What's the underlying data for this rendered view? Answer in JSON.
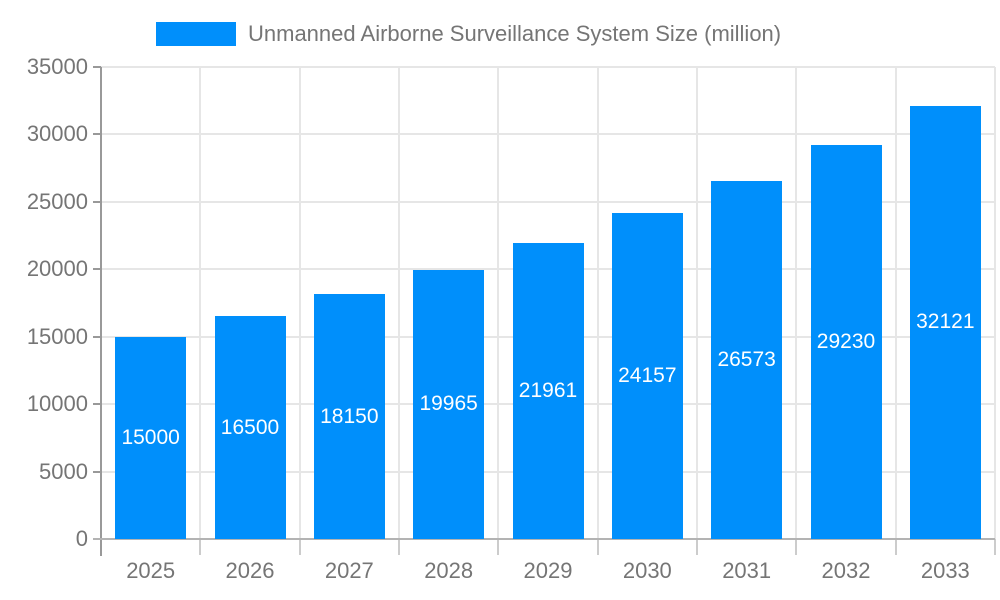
{
  "chart_data": {
    "type": "bar",
    "title": "Unmanned Airborne Surveillance System Size (million)",
    "categories": [
      "2025",
      "2026",
      "2027",
      "2028",
      "2029",
      "2030",
      "2031",
      "2032",
      "2033"
    ],
    "values": [
      15000,
      16500,
      18150,
      19965,
      21961,
      24157,
      26573,
      29230,
      32121
    ],
    "value_labels": [
      "15000",
      "16500",
      "18150",
      "19965",
      "21961",
      "24157",
      "26573",
      "29230",
      "32121"
    ],
    "xlabel": "",
    "ylabel": "",
    "ylim": [
      0,
      35000
    ],
    "ytick_step": 5000,
    "ytick_labels": [
      "0",
      "5000",
      "10000",
      "15000",
      "20000",
      "25000",
      "30000",
      "35000"
    ],
    "grid": true,
    "legend_position": "top",
    "colors": {
      "bar": "#008FFB",
      "bar_value_label": "#FFFFFF",
      "axis_label": "#757575",
      "legend_label": "#757575",
      "gridline": "#E6E6E6",
      "y_axis_line": "#999999",
      "x_axis_line": "#B3B3B3",
      "y_tick": "#999999",
      "x_tick": "#CCCCCC",
      "background": "#FFFFFF"
    }
  }
}
